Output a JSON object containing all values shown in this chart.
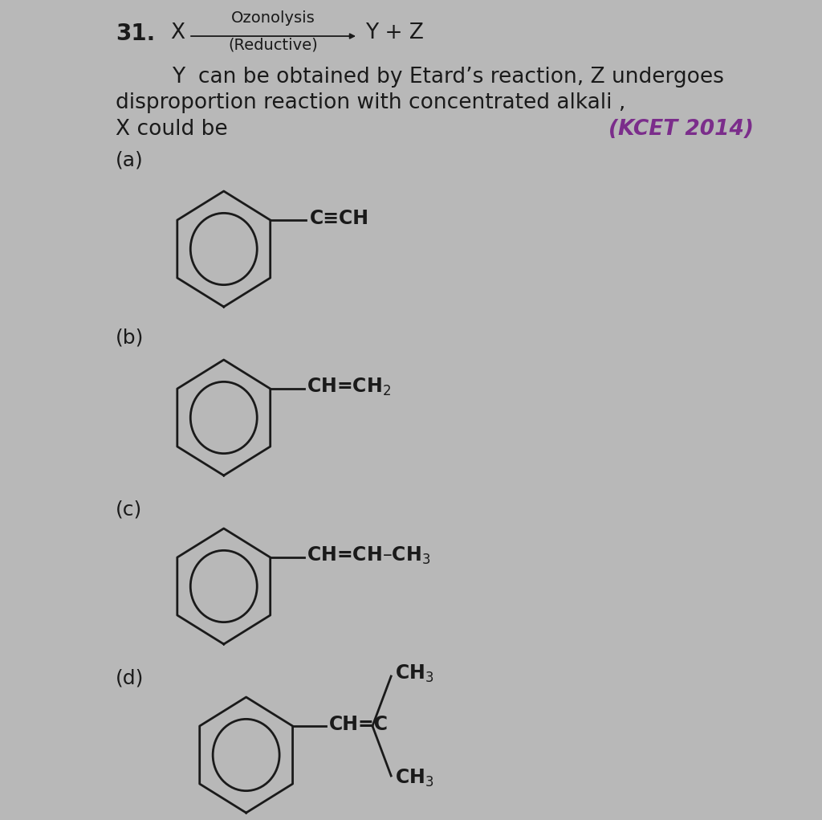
{
  "background_color": "#b8b8b8",
  "question_number": "31.",
  "reaction_top": "Ozonolysis",
  "reaction_bottom": "(Reductive)",
  "description_line1": "Y  can be obtained by Etard’s reaction, Z undergoes",
  "description_line2": "disproportion reaction with concentrated alkali ,",
  "description_line3": "X could be",
  "kcet_label": "(KCET 2014)",
  "text_color": "#1a1a1a",
  "kcet_color": "#7b2d8b",
  "font_size_main": 19,
  "font_size_option": 18,
  "font_size_kcet": 19,
  "font_size_reaction": 14,
  "font_size_formula": 16,
  "font_size_qnum": 20
}
